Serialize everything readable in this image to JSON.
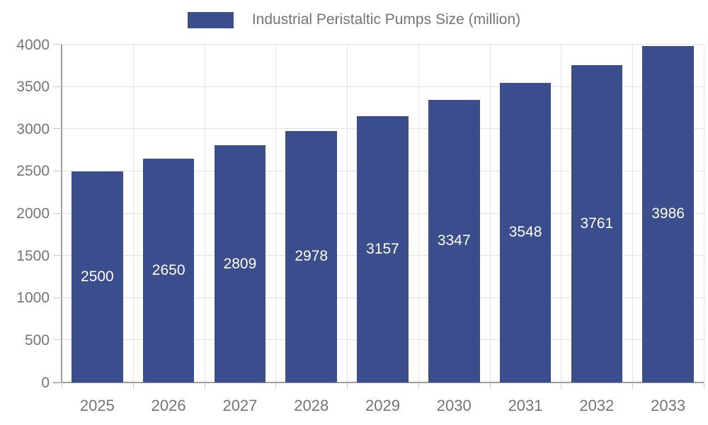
{
  "legend": {
    "label": "Industrial Peristaltic Pumps Size (million)"
  },
  "chart_data": {
    "type": "bar",
    "title": "Industrial Peristaltic Pumps Size (million)",
    "series_name": "Industrial Peristaltic Pumps Size (million)",
    "categories": [
      "2025",
      "2026",
      "2027",
      "2028",
      "2029",
      "2030",
      "2031",
      "2032",
      "2033"
    ],
    "values": [
      2500,
      2650,
      2809,
      2978,
      3157,
      3347,
      3548,
      3761,
      3986
    ],
    "value_labels": [
      "2500",
      "2650",
      "2809",
      "2978",
      "3157",
      "3347",
      "3548",
      "3761",
      "3986"
    ],
    "xlabel": "",
    "ylabel": "",
    "ylim": [
      0,
      4000
    ],
    "yticks": [
      0,
      500,
      1000,
      1500,
      2000,
      2500,
      3000,
      3500,
      4000
    ],
    "ytick_labels": [
      "0",
      "500",
      "1000",
      "1500",
      "2000",
      "2500",
      "3000",
      "3500",
      "4000"
    ],
    "grid": true,
    "legend_position": "top",
    "colors": {
      "bar": "#3A4D8C",
      "value_label_text": "#ffffff",
      "axis_text": "#757575",
      "axis_line": "#9e9e9e",
      "gridline": "#e3e3e3",
      "background": "#ffffff"
    }
  }
}
